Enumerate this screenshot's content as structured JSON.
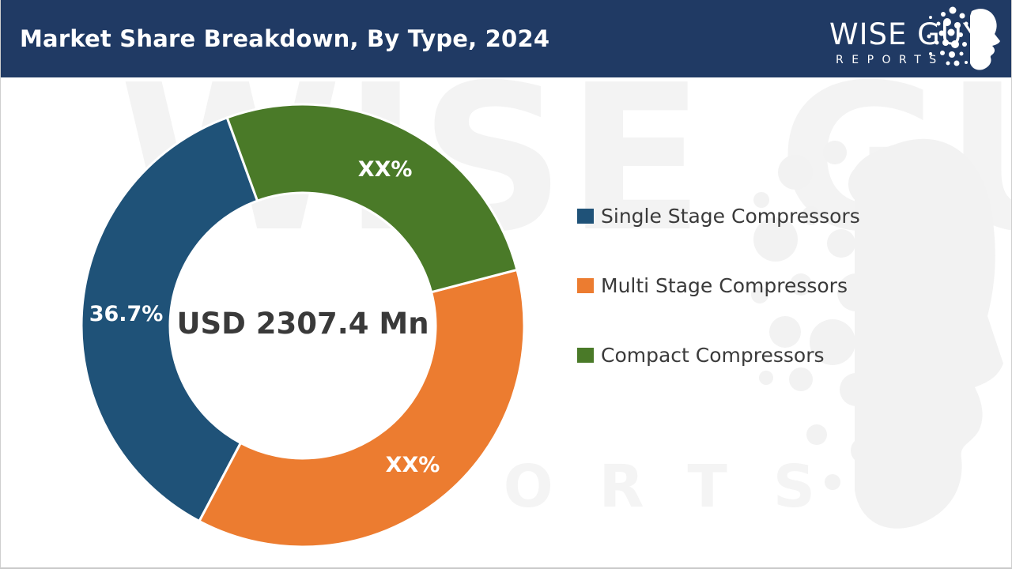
{
  "header": {
    "title": "Market Share Breakdown, By Type, 2024",
    "bg_color": "#203a64",
    "logo": {
      "line1": "WISE GUY",
      "line2": "REPORTS"
    }
  },
  "watermark": {
    "line1": "WISE GUY",
    "line2": "REPORTS"
  },
  "chart_data": {
    "type": "pie",
    "subtype": "donut",
    "title": "Market Share Breakdown, By Type, 2024",
    "center_label": "USD 2307.4 Mn",
    "start_angle_deg": 110,
    "direction": "counterclockwise",
    "inner_radius_ratio": 0.6,
    "legend_position": "right",
    "segments": [
      {
        "label": "Single Stage Compressors",
        "value_pct": 36.7,
        "display": "36.7%",
        "color": "#1f5278"
      },
      {
        "label": "Multi Stage Compressors",
        "value_pct": 36.8,
        "display": "XX%",
        "color": "#ec7c30"
      },
      {
        "label": "Compact Compressors",
        "value_pct": 26.5,
        "display": "XX%",
        "color": "#4a7a28"
      }
    ]
  }
}
